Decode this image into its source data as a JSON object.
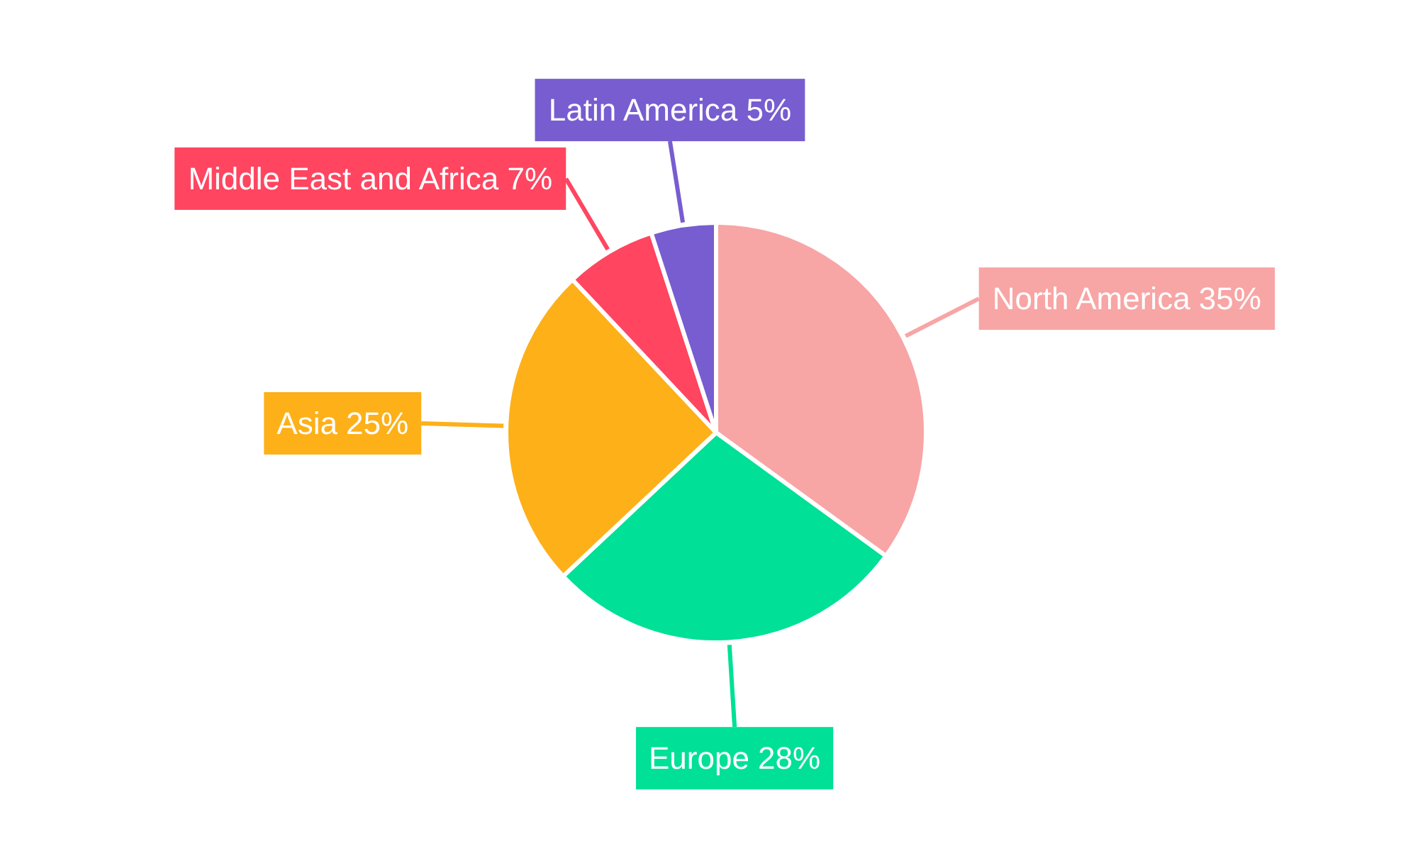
{
  "chart_data": {
    "type": "pie",
    "categories": [
      "North America",
      "Europe",
      "Asia",
      "Middle East and Africa",
      "Latin America"
    ],
    "values": [
      35,
      28,
      25,
      7,
      5
    ],
    "value_labels": [
      "35%",
      "28%",
      "25%",
      "7%",
      "5%"
    ],
    "colors": [
      "#f8a5a5",
      "#00e096",
      "#feb019",
      "#ff4560",
      "#775dd0"
    ],
    "legend": false
  }
}
